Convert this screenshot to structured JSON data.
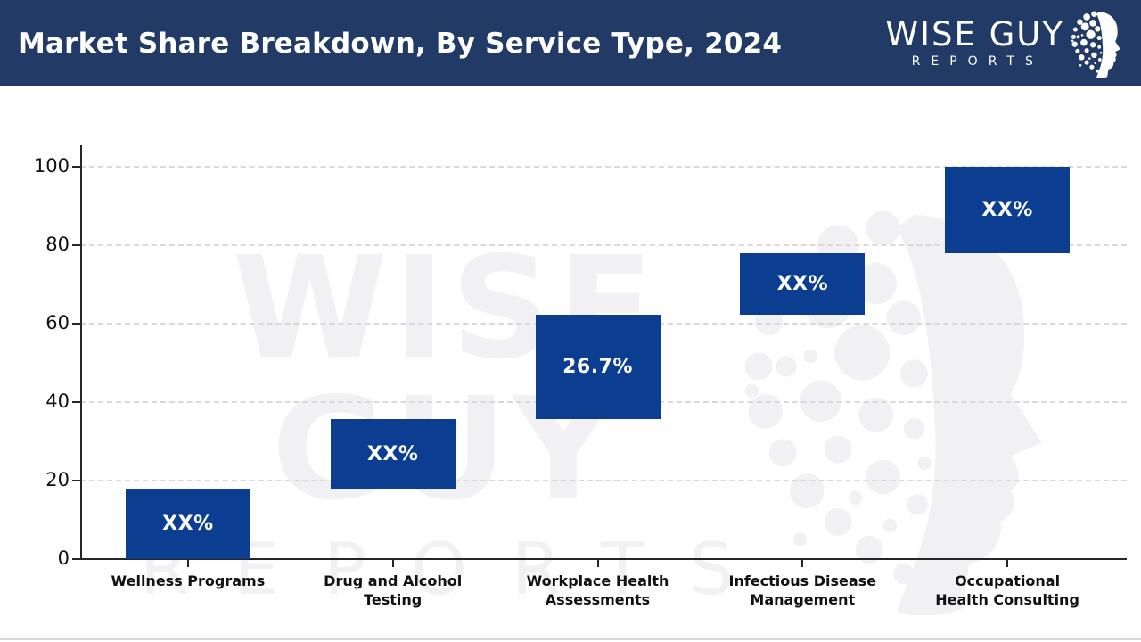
{
  "header": {
    "title": "Market Share Breakdown, By Service Type, 2024",
    "logo": {
      "wordmark": "WISE GUY",
      "subtext": "REPORTS"
    }
  },
  "watermark": {
    "wordmark": "WISE GUY",
    "subtext": "REPORTS"
  },
  "colors": {
    "header_bg": "#213a66",
    "bar": "#0b3d91",
    "bar_label_text": "#ffffff",
    "grid": "#d9d9d9",
    "axis": "#262626",
    "tick_text": "#111111",
    "watermark": "#f1f1f4",
    "bottom_line": "#d8d8d8"
  },
  "chart_data": {
    "type": "bar",
    "subtype": "waterfall",
    "title": "Market Share Breakdown, By Service Type, 2024",
    "categories": [
      [
        "Wellness Programs"
      ],
      [
        "Drug and Alcohol",
        "Testing"
      ],
      [
        "Workplace Health",
        "Assessments"
      ],
      [
        "Infectious Disease",
        "Management"
      ],
      [
        "Occupational",
        "Health Consulting"
      ]
    ],
    "segments": [
      {
        "start": 0,
        "end": 18,
        "value": 18,
        "label": "XX%"
      },
      {
        "start": 18,
        "end": 35.6,
        "value": 17.6,
        "label": "XX%"
      },
      {
        "start": 35.6,
        "end": 62.3,
        "value": 26.7,
        "label": "26.7%"
      },
      {
        "start": 62.3,
        "end": 78,
        "value": 15.7,
        "label": "XX%"
      },
      {
        "start": 78,
        "end": 100,
        "value": 22,
        "label": "XX%"
      }
    ],
    "ylim": [
      0,
      100
    ],
    "yticks": [
      0,
      20,
      40,
      60,
      80,
      100
    ],
    "xlabel": "",
    "ylabel": "",
    "grid": "horizontal-dashed",
    "legend": "none"
  }
}
